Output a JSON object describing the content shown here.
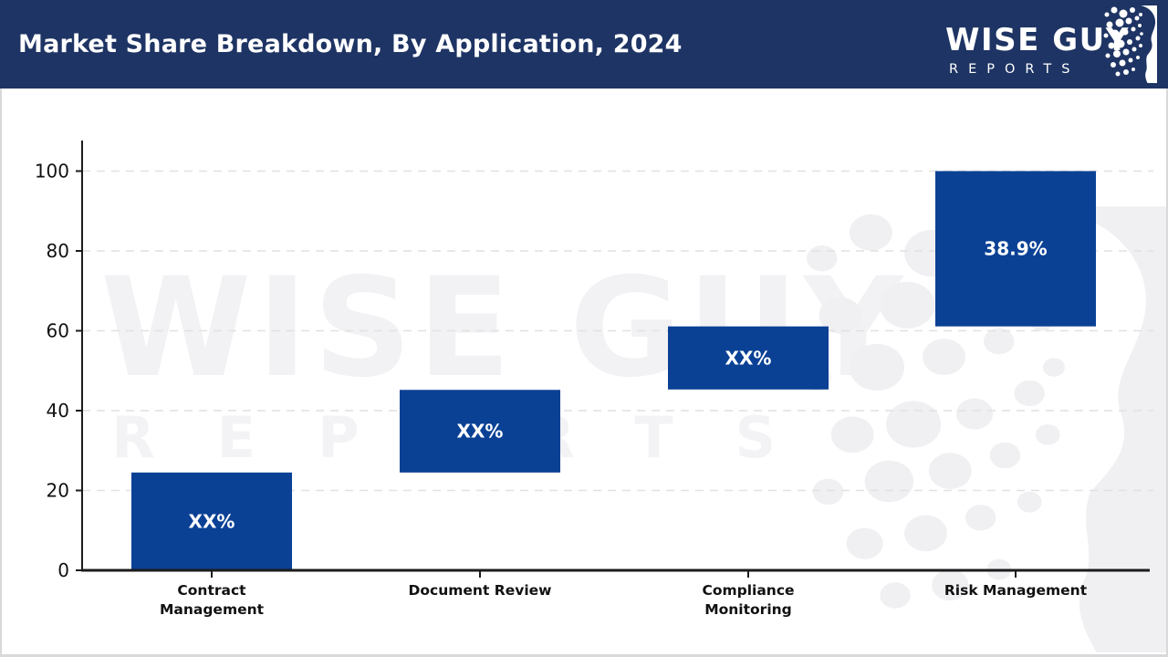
{
  "header": {
    "title": "Market Share Breakdown, By Application, 2024",
    "logo": {
      "name": "WISE GUY",
      "subname": "REPORTS"
    }
  },
  "watermark": {
    "line1": "WISE GUY",
    "line2": "REPORTS"
  },
  "chart_data": {
    "type": "bar",
    "subtype": "waterfall",
    "title": "Market Share Breakdown, By Application, 2024",
    "xlabel": "",
    "ylabel": "",
    "ylim": [
      0,
      105
    ],
    "yticks": [
      0,
      20,
      40,
      60,
      80,
      100
    ],
    "grid": "horizontal-dashed",
    "legend": "none",
    "categories": [
      "Contract Management",
      "Document Review",
      "Compliance Monitoring",
      "Risk Management"
    ],
    "segments": [
      {
        "category": "Contract Management",
        "category_lines": [
          "Contract",
          "Management"
        ],
        "start": 0,
        "end": 24.5,
        "label": "XX%"
      },
      {
        "category": "Document Review",
        "category_lines": [
          "Document Review"
        ],
        "start": 24.5,
        "end": 45.2,
        "label": "XX%"
      },
      {
        "category": "Compliance Monitoring",
        "category_lines": [
          "Compliance",
          "Monitoring"
        ],
        "start": 45.3,
        "end": 61.1,
        "label": "XX%"
      },
      {
        "category": "Risk Management",
        "category_lines": [
          "Risk Management"
        ],
        "start": 61.1,
        "end": 100,
        "label": "38.9%"
      }
    ],
    "colors": {
      "bar": "#0a4195",
      "bar_label": "#ffffff",
      "header": "#1e3464",
      "grid": "#e1e1e1",
      "axis": "#1c1c1c",
      "tick_label": "#111111",
      "watermark": "#f1f1f4"
    }
  }
}
